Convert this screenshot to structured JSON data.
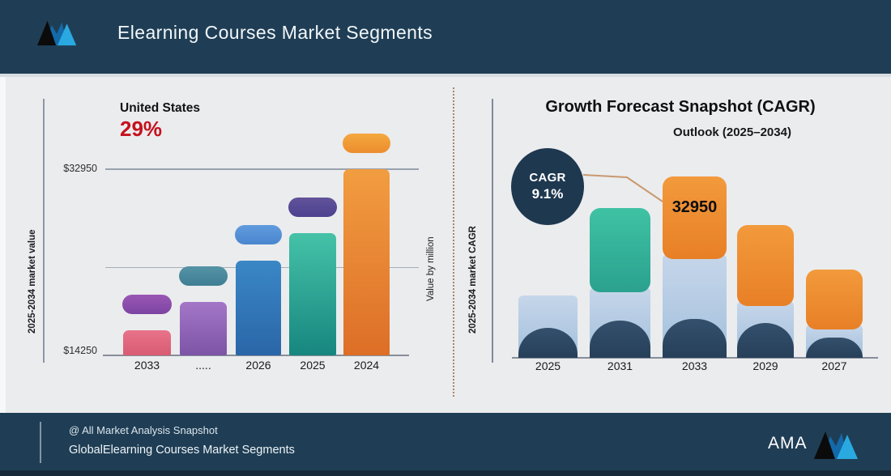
{
  "header": {
    "title": "Elearning Courses Market Segments",
    "logo": "ama-mountain-logo"
  },
  "left_chart": {
    "region_label": "United States",
    "highlight_value": "29%",
    "y_axis_label": "2025-2034 market value",
    "right_axis_label": "Value by million",
    "y_tick_top": "$32950",
    "y_tick_bottom": "$14250"
  },
  "right_chart": {
    "title": "Growth Forecast Snapshot (CAGR)",
    "subtitle": "Outlook (2025–2034)",
    "y_axis_label": "2025-2034 market CAGR",
    "cagr_badge": {
      "label": "CAGR",
      "value": "9.1%"
    },
    "data_label": "32950"
  },
  "footer": {
    "line1": "@ All Market Analysis Snapshot",
    "line2": "GlobalElearning Courses Market Segments",
    "brand": "AMA"
  },
  "colors": {
    "frame_navy": "#1f3e55",
    "panel_bg": "#ebecee",
    "accent_red": "#c4121e",
    "circle_navy": "#1e3850",
    "connector_tan": "#c9996f",
    "axis_gray": "#8b97a5"
  },
  "chart_data": [
    {
      "type": "bar",
      "title": "United States 2025-2034 market value",
      "ylabel": "2025-2034 market value",
      "ylabel_right": "Value by million",
      "ylim": [
        14250,
        32950
      ],
      "yticks": [
        "$14250",
        "$32950"
      ],
      "grid": "two horizontal gridlines at $32950 and midpoint",
      "categories": [
        "2033",
        ".....",
        "2026",
        "2025",
        "2024"
      ],
      "values": [
        16800,
        19600,
        23800,
        26500,
        32950
      ],
      "note": "each column has a detached floating capsule above it",
      "items": [
        {
          "label": "2033",
          "value": 16800,
          "bar": [
            "#e8738a",
            "#d85b72"
          ],
          "cap": [
            "#9a57b4",
            "#7d44a2"
          ]
        },
        {
          "label": ".....",
          "value": 19600,
          "bar": [
            "#a476c8",
            "#7c54a6"
          ],
          "cap": [
            "#5593a6",
            "#3f7e93"
          ]
        },
        {
          "label": "2026",
          "value": 23800,
          "bar": [
            "#3a87c6",
            "#2a66a8"
          ],
          "cap": [
            "#629bde",
            "#4a86cf"
          ]
        },
        {
          "label": "2025",
          "value": 26500,
          "bar": [
            "#45c2a8",
            "#17867f"
          ],
          "cap": [
            "#625399",
            "#4c4190"
          ]
        },
        {
          "label": "2024",
          "value": 32950,
          "bar": [
            "#f29d41",
            "#dd6e27"
          ],
          "cap": [
            "#f5a83e",
            "#ec8d2e"
          ]
        }
      ]
    },
    {
      "type": "stacked-bar",
      "title": "Growth Forecast Snapshot (CAGR)",
      "subtitle": "Outlook (2025–2034)",
      "cagr": "9.1%",
      "ylabel": "2025-2034 market CAGR",
      "ylim": [
        0,
        32950
      ],
      "annotation": {
        "text": "32950",
        "category": "2033"
      },
      "categories": [
        "2025",
        "2031",
        "2033",
        "2029",
        "2027"
      ],
      "totals": [
        11300,
        27200,
        32950,
        24100,
        16000
      ],
      "segment_colors": {
        "navy": [
          "#34506c",
          "#27405a"
        ],
        "blue": [
          "#c6d6ea",
          "#a3c0dc"
        ]
      },
      "items": [
        {
          "label": "2025",
          "navy": 5400,
          "blue": 11300,
          "total": 11300,
          "top": null
        },
        {
          "label": "2031",
          "navy": 6800,
          "blue": 12800,
          "total": 27200,
          "top": [
            "#3fc2a4",
            "#2aa18e"
          ]
        },
        {
          "label": "2033",
          "navy": 7100,
          "blue": 18800,
          "total": 32950,
          "top": [
            "#f29a3c",
            "#e87f26"
          ]
        },
        {
          "label": "2029",
          "navy": 6300,
          "blue": 10300,
          "total": 24100,
          "top": [
            "#f29a3c",
            "#e87f26"
          ]
        },
        {
          "label": "2027",
          "navy": 3700,
          "blue": 6000,
          "total": 16000,
          "top": [
            "#f29a3c",
            "#e87f26"
          ]
        }
      ]
    }
  ]
}
